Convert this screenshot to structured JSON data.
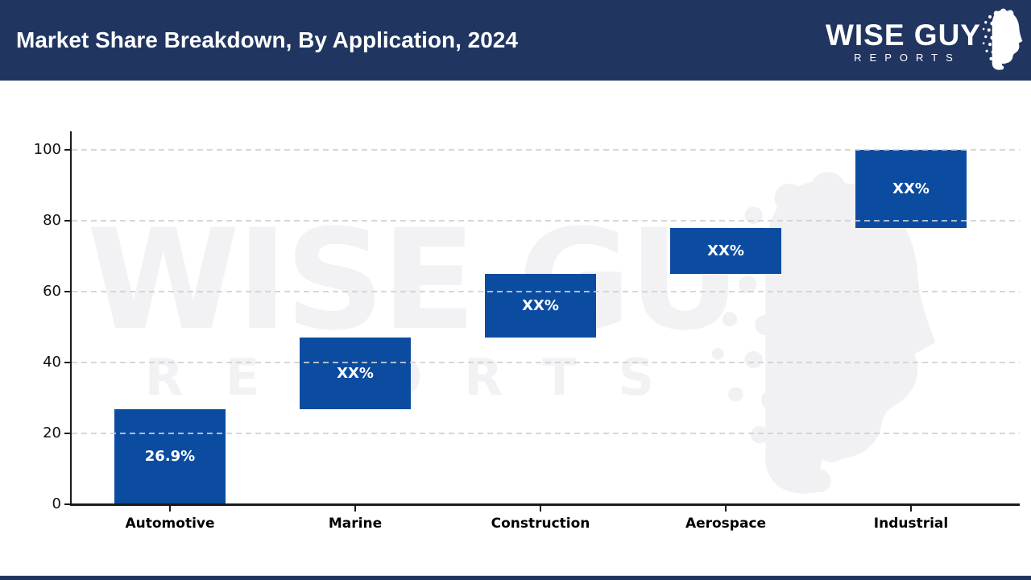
{
  "header": {
    "title": "Market Share Breakdown, By Application, 2024",
    "bg_color": "#203560",
    "logo": {
      "wordmark": "WISE GUY",
      "subtext": "REPORTS"
    }
  },
  "watermark": {
    "wordmark": "WISE GUY",
    "subtext": "REPORTS"
  },
  "chart_data": {
    "type": "bar",
    "subtype": "floating-waterfall",
    "title": "Market Share Breakdown, By Application, 2024",
    "xlabel": "",
    "ylabel": "",
    "categories": [
      "Automotive",
      "Marine",
      "Construction",
      "Aerospace",
      "Industrial"
    ],
    "segments": [
      {
        "category": "Automotive",
        "start": 0,
        "end": 26.9,
        "label": "26.9%"
      },
      {
        "category": "Marine",
        "start": 26.9,
        "end": 47,
        "label": "XX%"
      },
      {
        "category": "Construction",
        "start": 47,
        "end": 65,
        "label": "XX%"
      },
      {
        "category": "Aerospace",
        "start": 65,
        "end": 78,
        "label": "XX%"
      },
      {
        "category": "Industrial",
        "start": 78,
        "end": 100,
        "label": "XX%"
      }
    ],
    "bar_labels": [
      "26.9%",
      "XX%",
      "XX%",
      "XX%",
      "XX%"
    ],
    "yticks": [
      0,
      20,
      40,
      60,
      80,
      100
    ],
    "ytick_labels": [
      "0",
      "20",
      "40",
      "60",
      "80",
      "100"
    ],
    "ylim": [
      0,
      105
    ],
    "grid": "horizontal-dashed",
    "legend": "none",
    "bar_color": "#0B4CA1",
    "bar_label_color": "#FFFFFF"
  }
}
